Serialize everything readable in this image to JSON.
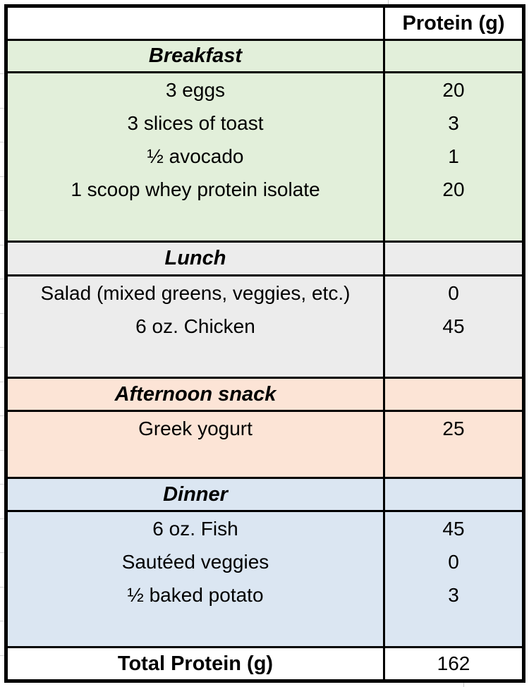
{
  "table": {
    "columns": {
      "item": "",
      "protein": "Protein (g)"
    },
    "sections": [
      {
        "name": "Breakfast",
        "bg": "#e2efda",
        "items": [
          {
            "label": "3 eggs",
            "protein": "20"
          },
          {
            "label": "3 slices of toast",
            "protein": "3"
          },
          {
            "label": "½ avocado",
            "protein": "1"
          },
          {
            "label": "1 scoop whey protein isolate",
            "protein": "20"
          }
        ]
      },
      {
        "name": "Lunch",
        "bg": "#ececec",
        "items": [
          {
            "label": "Salad (mixed greens, veggies, etc.)",
            "protein": "0"
          },
          {
            "label": "6 oz. Chicken",
            "protein": "45"
          }
        ]
      },
      {
        "name": "Afternoon snack",
        "bg": "#fce4d6",
        "items": [
          {
            "label": "Greek yogurt",
            "protein": "25"
          }
        ]
      },
      {
        "name": "Dinner",
        "bg": "#dbe6f2",
        "items": [
          {
            "label": "6 oz. Fish",
            "protein": "45"
          },
          {
            "label": "Sautéed veggies",
            "protein": "0"
          },
          {
            "label": "½ baked potato",
            "protein": "3"
          }
        ]
      }
    ],
    "total": {
      "label": "Total Protein (g)",
      "value": "162"
    },
    "colors": {
      "border": "#000000",
      "header_bg": "#ffffff",
      "total_bg": "#ffffff"
    }
  }
}
